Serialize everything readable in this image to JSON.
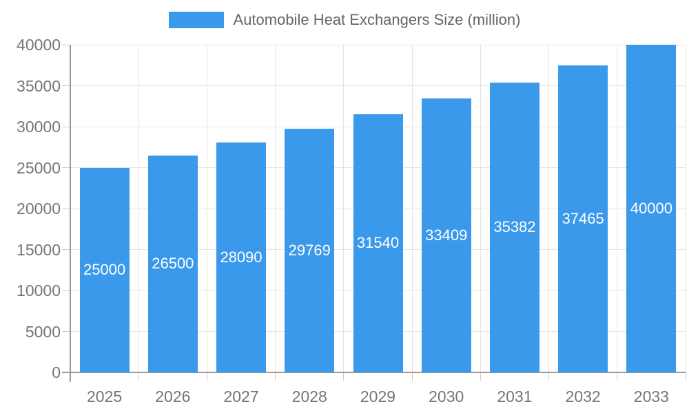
{
  "legend": {
    "label": "Automobile Heat Exchangers Size (million)"
  },
  "chart_data": {
    "type": "bar",
    "title": "Automobile Heat Exchangers Size (million)",
    "categories": [
      "2025",
      "2026",
      "2027",
      "2028",
      "2029",
      "2030",
      "2031",
      "2032",
      "2033"
    ],
    "series": [
      {
        "name": "Automobile Heat Exchangers Size (million)",
        "values": [
          25000,
          26500,
          28090,
          29769,
          31540,
          33409,
          35382,
          37465,
          40000
        ]
      }
    ],
    "value_labels": [
      "25000",
      "26500",
      "28090",
      "29769",
      "31540",
      "33409",
      "35382",
      "37465",
      "40000"
    ],
    "xlabel": "",
    "ylabel": "",
    "ylim": [
      0,
      40000
    ],
    "yticks": [
      0,
      5000,
      10000,
      15000,
      20000,
      25000,
      30000,
      35000,
      40000
    ],
    "grid": true,
    "legend_position": "top",
    "value_label_position": "inside-center",
    "colors": {
      "bar": "#3b99ec",
      "grid": "#e4e4e4",
      "tick": "#cccccc",
      "axis": "#999999",
      "tick_text": "#757575",
      "legend_text": "#666666",
      "value_label": "#ffffff",
      "background": "#ffffff"
    }
  }
}
